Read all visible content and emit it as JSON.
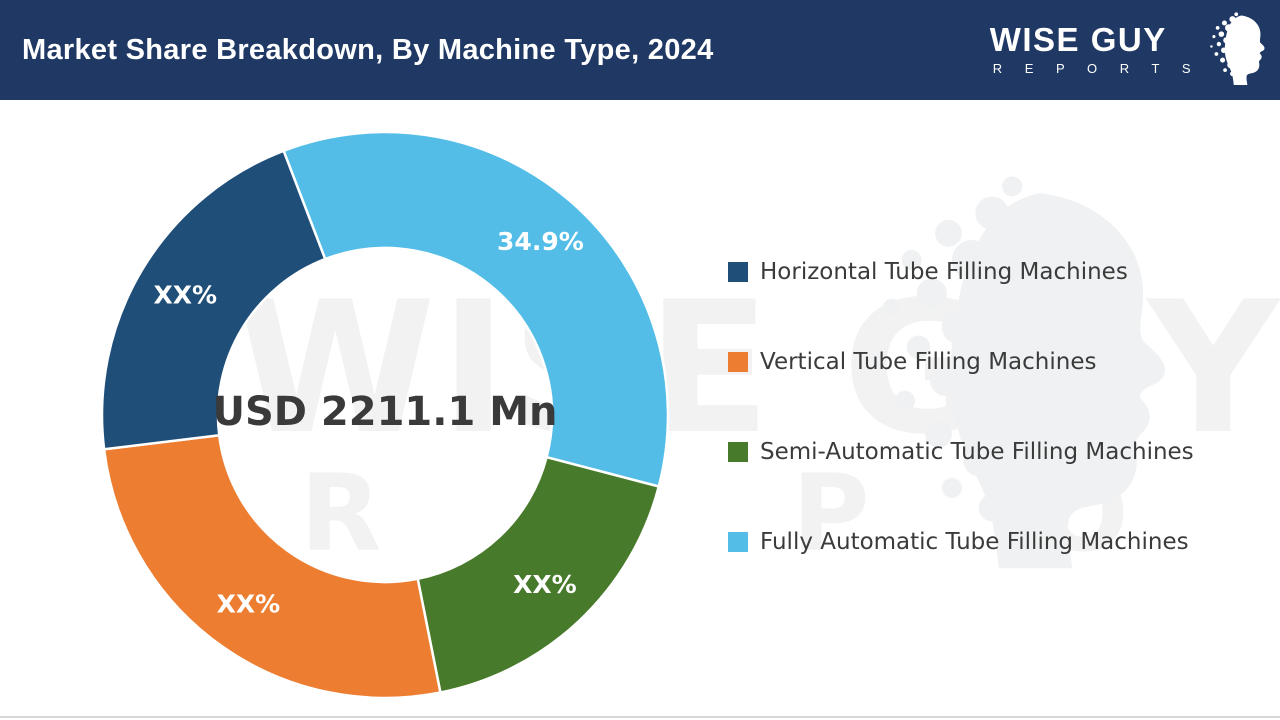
{
  "header": {
    "title": "Market Share Breakdown, By Machine Type, 2024",
    "background_color": "#1F3864",
    "logo": {
      "line1": "WISE GUY",
      "line2": "R E P O R T S"
    }
  },
  "watermark": {
    "line1": "WISE GUY",
    "line2": "R E P O R T S"
  },
  "chart_data": {
    "type": "pie",
    "subtype": "donut",
    "title": "Market Share Breakdown, By Machine Type, 2024",
    "center_label": "USD 2211.1 Mn",
    "start_angle_deg": -21,
    "legend_position": "right",
    "segments": [
      {
        "slug": "horizontal",
        "name": "Horizontal Tube Filling Machines",
        "color": "#1F4E79",
        "approx_value_pct": 21.1,
        "label": "XX%"
      },
      {
        "slug": "vertical",
        "name": "Vertical Tube Filling Machines",
        "color": "#ED7D31",
        "approx_value_pct": 26.2,
        "label": "XX%"
      },
      {
        "slug": "semi-automatic",
        "name": "Semi-Automatic Tube Filling Machines",
        "color": "#487A2B",
        "approx_value_pct": 17.8,
        "label": "XX%"
      },
      {
        "slug": "fully-automatic",
        "name": "Fully Automatic Tube Filling Machines",
        "color": "#53BDE8",
        "approx_value_pct": 34.9,
        "label": "34.9%"
      }
    ]
  }
}
